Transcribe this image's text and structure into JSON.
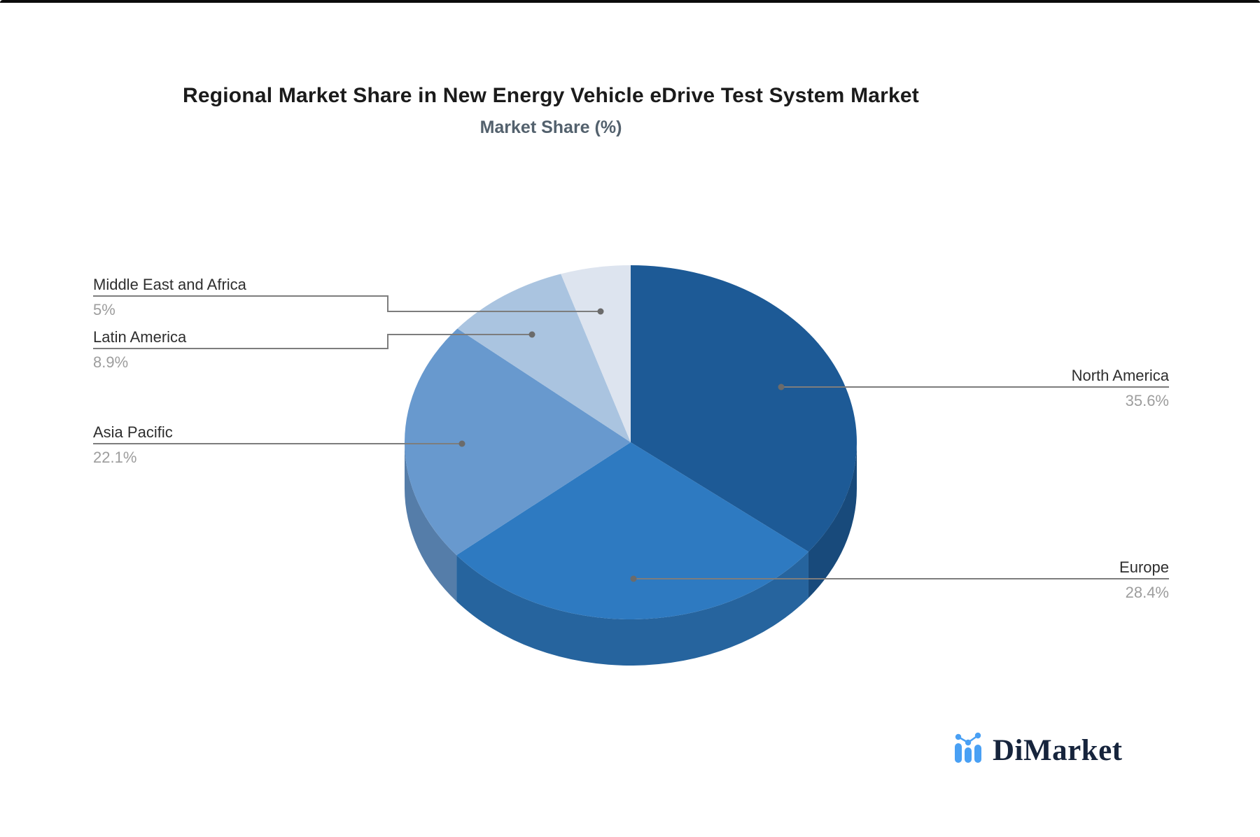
{
  "page": {
    "background": "#ffffff",
    "top_edge_color": "#0b0b0b"
  },
  "header": {
    "title": "Regional Market Share in New Energy Vehicle eDrive Test System Market",
    "subtitle": "Market Share (%)"
  },
  "chart_data": {
    "type": "pie",
    "style": "3d",
    "title": "Regional Market Share in New Energy Vehicle eDrive Test System Market",
    "subtitle": "Market Share (%)",
    "unit": "%",
    "start_angle_deg": 0,
    "direction": "clockwise",
    "legend": "none",
    "connector_color": "#7d7d7d",
    "slices": [
      {
        "name": "North America",
        "value": 35.6,
        "display_value": "35.6%",
        "color": "#1d5a96"
      },
      {
        "name": "Europe",
        "value": 28.4,
        "display_value": "28.4%",
        "color": "#2e7ac1"
      },
      {
        "name": "Asia Pacific",
        "value": 22.1,
        "display_value": "22.1%",
        "color": "#6899ce"
      },
      {
        "name": "Latin America",
        "value": 8.9,
        "display_value": "8.9%",
        "color": "#aac4e0"
      },
      {
        "name": "Middle East and Africa",
        "value": 5,
        "display_value": "5%",
        "color": "#dde4ef"
      }
    ]
  },
  "logo": {
    "text": "DiMarket",
    "icon": "bar-chart-icon",
    "icon_color": "#49a0f4",
    "text_color": "#16243c"
  }
}
